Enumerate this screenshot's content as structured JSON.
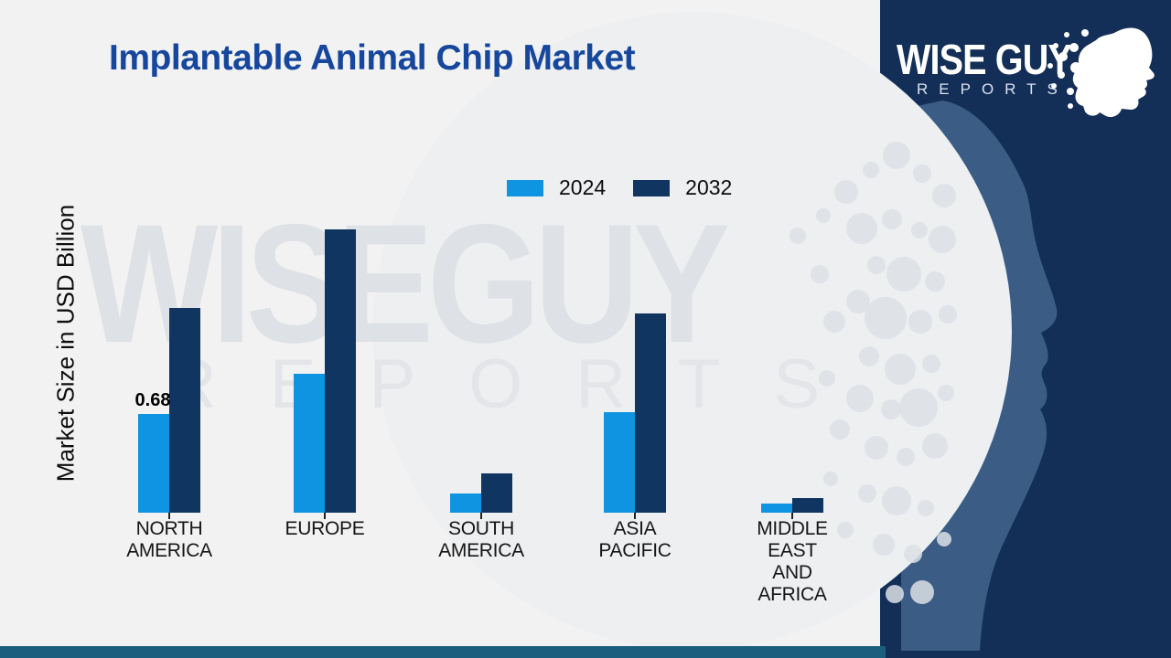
{
  "title": "Implantable Animal Chip Market",
  "ylabel": "Market Size in USD Billion",
  "legend": [
    {
      "label": "2024",
      "color": "#0e94e0"
    },
    {
      "label": "2032",
      "color": "#103560"
    }
  ],
  "logo": {
    "line1": "WISE GUY",
    "line2": "REPORTS"
  },
  "watermark": {
    "line1": "WISEGUY",
    "line2": "REPORTS"
  },
  "colors": {
    "background": "#f2f2f3",
    "panel_navy": "#132f58",
    "face_blue": "#3b5c85",
    "circle_gray": "#edeff1",
    "footer_teal": "#1b5e7e",
    "title_blue": "#16479d",
    "series_2024": "#0e94e0",
    "series_2032": "#103560",
    "watermark_gray": "#dee1e5",
    "watermark_gray2": "#e3e5e8"
  },
  "chart_data": {
    "type": "bar",
    "title": "Implantable Animal Chip Market",
    "xlabel": "",
    "ylabel": "Market Size in USD Billion",
    "categories": [
      "NORTH AMERICA",
      "EUROPE",
      "SOUTH AMERICA",
      "ASIA PACIFIC",
      "MIDDLE EAST AND AFRICA"
    ],
    "category_lines": [
      [
        "NORTH",
        "AMERICA"
      ],
      [
        "EUROPE"
      ],
      [
        "SOUTH",
        "AMERICA"
      ],
      [
        "ASIA",
        "PACIFIC"
      ],
      [
        "MIDDLE",
        "EAST",
        "AND",
        "AFRICA"
      ]
    ],
    "series": [
      {
        "name": "2024",
        "color": "#0e94e0",
        "values": [
          0.68,
          0.96,
          0.13,
          0.69,
          0.06
        ]
      },
      {
        "name": "2032",
        "color": "#103560",
        "values": [
          1.41,
          1.95,
          0.27,
          1.37,
          0.1
        ]
      }
    ],
    "bar_label": {
      "text": "0.68",
      "series_index": 0,
      "category_index": 0
    },
    "ylim": [
      0,
      2.2
    ],
    "grid": false,
    "legend_position": "top-center"
  }
}
